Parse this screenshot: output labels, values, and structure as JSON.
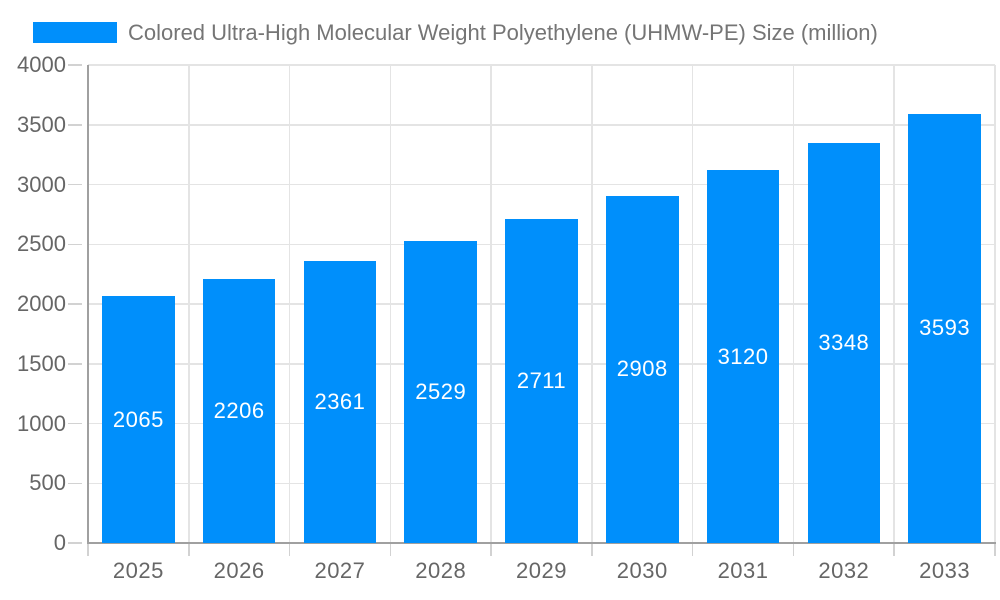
{
  "legend": {
    "label": "Colored Ultra-High Molecular Weight Polyethylene (UHMW-PE) Size (million)"
  },
  "chart_data": {
    "type": "bar",
    "title": "Colored Ultra-High Molecular Weight Polyethylene (UHMW-PE) Size (million)",
    "series_name": "Colored Ultra-High Molecular Weight Polyethylene (UHMW-PE) Size (million)",
    "categories": [
      "2025",
      "2026",
      "2027",
      "2028",
      "2029",
      "2030",
      "2031",
      "2032",
      "2033"
    ],
    "values": [
      2065,
      2206,
      2361,
      2529,
      2711,
      2908,
      3120,
      3348,
      3593
    ],
    "xlabel": "",
    "ylabel": "",
    "ylim": [
      0,
      4000
    ],
    "yticks": [
      0,
      500,
      1000,
      1500,
      2000,
      2500,
      3000,
      3500,
      4000
    ],
    "grid": true,
    "legend_position": "top-left",
    "bar_labels_inside": true,
    "colors": {
      "bar": "#008FFB",
      "bar_label": "#FFFFFF",
      "grid_line": "#E4E4E4",
      "axis_line": "#A0A0A0",
      "tick": "#D2D2D2",
      "axis_text": "#666666",
      "legend_text": "#757575",
      "background": "#FFFFFF"
    }
  }
}
